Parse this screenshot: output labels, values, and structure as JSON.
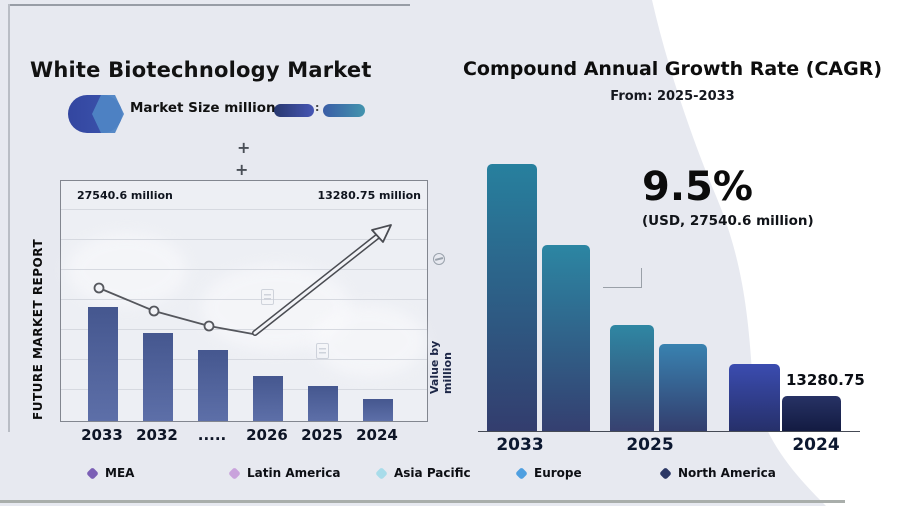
{
  "header": {
    "title": "White Biotechnology Market",
    "badge_label": "Market Size million",
    "pill_separator": ":",
    "plus_marks": [
      "+",
      "+"
    ]
  },
  "left_panel": {
    "annotation_start": "27540.6 million",
    "annotation_end": "13280.75 million",
    "side_label_left": "FUTURE MARKET REPORT",
    "side_label_right": "Value by million"
  },
  "right_panel": {
    "title": "Compound Annual Growth Rate (CAGR)",
    "subtitle": "From: 2025-2033",
    "cagr_value": "9.5%",
    "cagr_note": "(USD, 27540.6 million)",
    "bar_label": "13280.75"
  },
  "legend": {
    "items": [
      {
        "label": "MEA",
        "color": "#7b5fb5"
      },
      {
        "label": "Latin America",
        "color": "#c9a3dc"
      },
      {
        "label": "Asia Pacific",
        "color": "#a8dcea"
      },
      {
        "label": "Europe",
        "color": "#4f9fe0"
      },
      {
        "label": "North America",
        "color": "#2b3765"
      }
    ]
  },
  "colors": {
    "background": "#e7e9f0",
    "left_bar_top": "#45578f",
    "left_bar_bottom": "#5d6fa8",
    "accent_navy": "#2b3a6b"
  },
  "chart_data": [
    {
      "type": "bar",
      "id": "market-size-by-year",
      "title": "White Biotechnology Market",
      "legend_label": "Market Size million",
      "categories": [
        "2033",
        "2032",
        ".....",
        "2026",
        "2025",
        "2024"
      ],
      "values": [
        114,
        88,
        71,
        45,
        35,
        22
      ],
      "value_unit": "relative-height-px (no numeric axis shown)",
      "annotations": {
        "top_left": "27540.6 million",
        "top_right": "13280.75 million"
      },
      "ylabel": "Value by million",
      "left_margin_label": "FUTURE MARKET REPORT",
      "grid": "horizontal",
      "overlay": "declining marker line over first 4 bars, then outlined arrow rising to top-right annotation"
    },
    {
      "type": "bar",
      "id": "cagr-comparison",
      "title": "Compound Annual Growth Rate (CAGR)",
      "subtitle": "From: 2025-2033",
      "cagr": "9.5%",
      "cagr_note": "(USD, 27540.6 million)",
      "categories": [
        "2033",
        "2025",
        "2024"
      ],
      "series": [
        {
          "name": "bar-a",
          "values": [
            267,
            106,
            67
          ]
        },
        {
          "name": "bar-b",
          "values": [
            186,
            87,
            35
          ]
        }
      ],
      "value_unit": "relative-height-px (no numeric axis shown)",
      "data_label": {
        "category": "2024",
        "text": "13280.75"
      },
      "bar_gradients": [
        [
          "#27809e",
          "#333d6e"
        ],
        [
          "#2c86a3",
          "#343f70"
        ],
        [
          "#2f87a3",
          "#374170"
        ],
        [
          "#3982b0",
          "#333e6e"
        ],
        [
          "#3b4cb0",
          "#26306a"
        ],
        [
          "#273265",
          "#131b42"
        ]
      ]
    }
  ]
}
